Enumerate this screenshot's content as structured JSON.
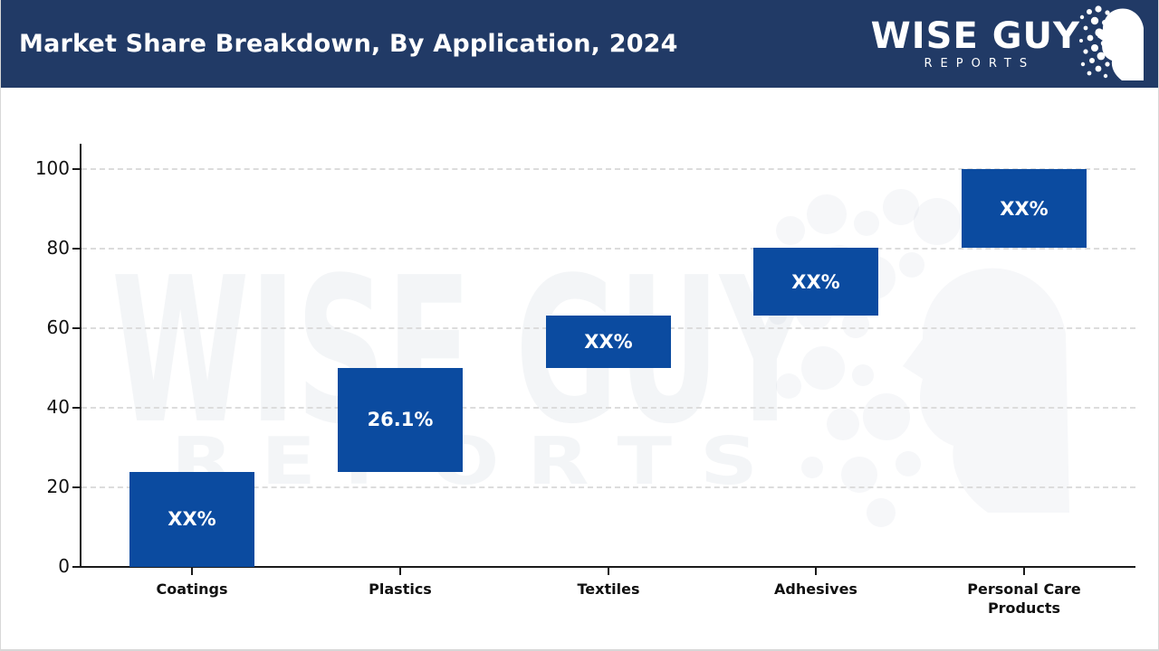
{
  "header": {
    "title": "Market Share Breakdown, By Application, 2024",
    "bg_color": "#213a66",
    "logo": {
      "line1": "WISE GUY",
      "line2": "REPORTS"
    }
  },
  "watermark": {
    "line1": "WISE GUY",
    "line2": "R E P O R T S"
  },
  "chart_data": {
    "type": "bar",
    "subtype": "waterfall",
    "title": "Market Share Breakdown, By Application, 2024",
    "xlabel": "",
    "ylabel": "",
    "categories": [
      "Coatings",
      "Plastics",
      "Textiles",
      "Adhesives",
      "Personal Care Products"
    ],
    "segments": [
      {
        "category": "Coatings",
        "start": 0,
        "end": 23.9,
        "label": "XX%"
      },
      {
        "category": "Plastics",
        "start": 23.9,
        "end": 50.0,
        "label": "26.1%"
      },
      {
        "category": "Textiles",
        "start": 50.0,
        "end": 63.1,
        "label": "XX%"
      },
      {
        "category": "Adhesives",
        "start": 63.1,
        "end": 80.2,
        "label": "XX%"
      },
      {
        "category": "Personal Care Products",
        "start": 80.2,
        "end": 100,
        "label": "XX%"
      }
    ],
    "yticks": [
      0,
      20,
      40,
      60,
      80,
      100
    ],
    "ylim": [
      0,
      106
    ],
    "bar_color": "#0b4ba0",
    "grid": true,
    "grid_style": "dashed",
    "legend": false
  }
}
